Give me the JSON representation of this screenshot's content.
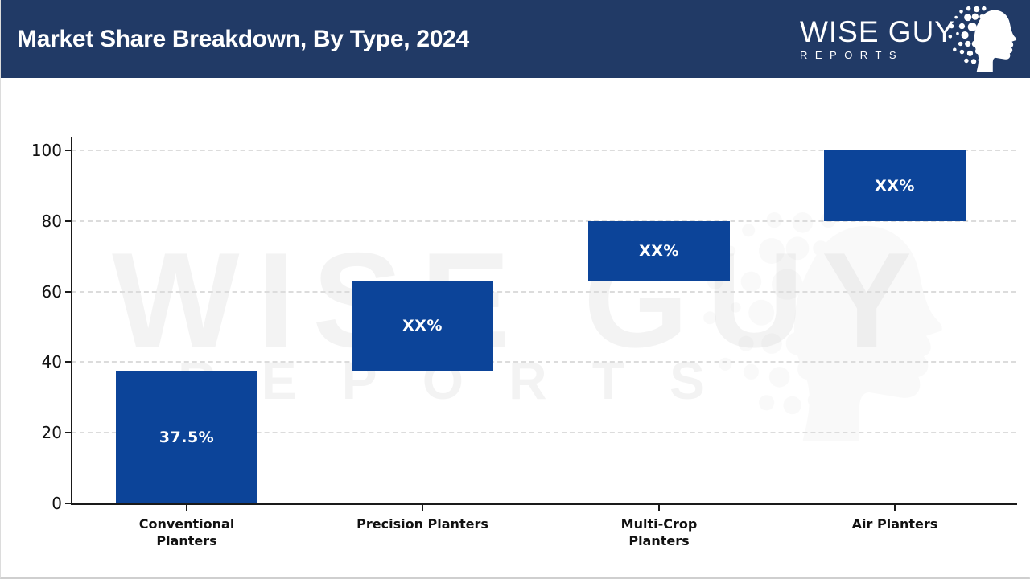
{
  "header": {
    "title": "Market Share Breakdown, By Type, 2024",
    "logo": {
      "name": "WISE GUY",
      "sub": "REPORTS"
    }
  },
  "watermark": {
    "line1": "WISE GUY",
    "line2": "REPORTS"
  },
  "chart_data": {
    "type": "bar",
    "subtype": "waterfall",
    "title": "Market Share Breakdown, By Type, 2024",
    "categories": [
      [
        "Conventional",
        "Planters"
      ],
      [
        "Precision Planters"
      ],
      [
        "Multi-Crop",
        "Planters"
      ],
      [
        "Air Planters"
      ]
    ],
    "series": [
      {
        "name": "Market Share",
        "segments": [
          [
            0,
            37.5
          ],
          [
            37.5,
            63
          ],
          [
            63,
            80
          ],
          [
            80,
            100
          ]
        ],
        "labels": [
          "37.5%",
          "XX%",
          "XX%",
          "XX%"
        ]
      }
    ],
    "yticks": [
      0,
      20,
      40,
      60,
      80,
      100
    ],
    "ylim": [
      0,
      105
    ],
    "xlabel": "",
    "ylabel": "",
    "grid": true,
    "legend": false,
    "bar_color": "#0c4499",
    "bar_label_color": "#ffffff",
    "grid_color": "#dcdcdc",
    "header_bg_color": "#213a66"
  }
}
